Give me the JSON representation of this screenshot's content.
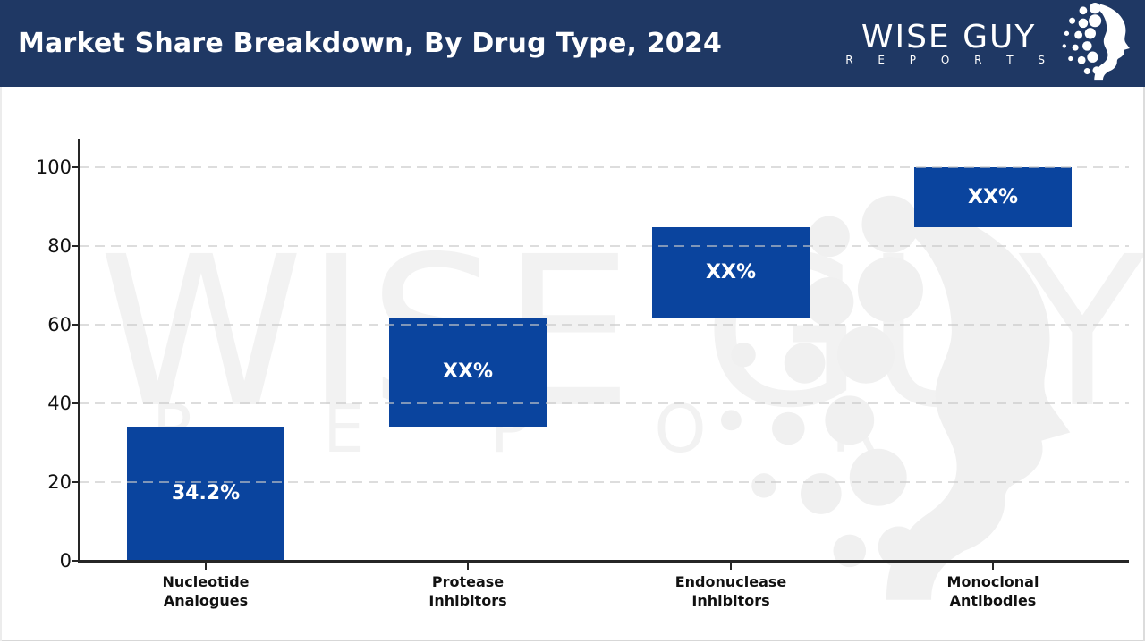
{
  "header": {
    "title": "Market Share Breakdown, By Drug Type, 2024",
    "bg_color": "#1f3864",
    "logo": {
      "line1": "WISE GUY",
      "line2": "R E P O R T S"
    }
  },
  "watermark": {
    "line1": "WISE GUY",
    "line2": "R E P O R T S"
  },
  "chart_data": {
    "type": "bar",
    "variant": "waterfall",
    "title": "Market Share Breakdown, By Drug Type, 2024",
    "categories": [
      "Nucleotide Analogues",
      "Protease Inhibitors",
      "Endonuclease Inhibitors",
      "Monoclonal Antibodies"
    ],
    "categories_lines": [
      {
        "line1": "Nucleotide",
        "line2": "Analogues"
      },
      {
        "line1": "Protease",
        "line2": "Inhibitors"
      },
      {
        "line1": "Endonuclease",
        "line2": "Inhibitors"
      },
      {
        "line1": "Monoclonal",
        "line2": "Antibodies"
      }
    ],
    "segments": [
      {
        "start": 0,
        "end": 34.2,
        "value_label": "34.2%"
      },
      {
        "start": 34.2,
        "end": 61.8,
        "value_label": "XX%"
      },
      {
        "start": 61.8,
        "end": 84.8,
        "value_label": "XX%"
      },
      {
        "start": 84.8,
        "end": 100,
        "value_label": "XX%"
      }
    ],
    "yticks": [
      0,
      20,
      40,
      60,
      80,
      100
    ],
    "ylim": [
      0,
      107
    ],
    "xlabel": "",
    "ylabel": "",
    "grid": "horizontal-dashed",
    "legend": "none",
    "bar_color": "#0a449e",
    "value_label_color": "#ffffff"
  }
}
